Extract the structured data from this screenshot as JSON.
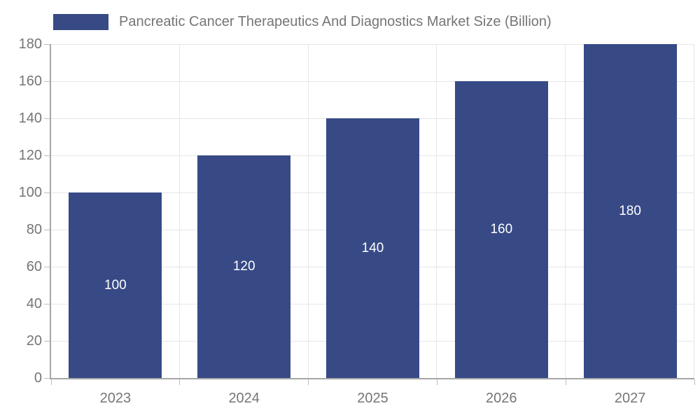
{
  "chart_data": {
    "type": "bar",
    "title": "Pancreatic Cancer Therapeutics And Diagnostics Market Size (Billion)",
    "legend_entries": [
      "Pancreatic Cancer Therapeutics And Diagnostics Market Size (Billion)"
    ],
    "legend_position": "top-left",
    "categories": [
      "2023",
      "2024",
      "2025",
      "2026",
      "2027"
    ],
    "values": [
      100,
      120,
      140,
      160,
      180
    ],
    "bar_value_labels": [
      "100",
      "120",
      "140",
      "160",
      "180"
    ],
    "y_ticks": [
      0,
      20,
      40,
      60,
      80,
      100,
      120,
      140,
      160,
      180
    ],
    "ylim": [
      0,
      180
    ],
    "xlabel": "",
    "ylabel": "",
    "grid": true,
    "colors": {
      "bar": "#374a86",
      "value_label": "#ffffff",
      "grid": "#e6e6e6",
      "axis": "#a6a6a6",
      "tick": "#bdbdbd",
      "tick_label": "#757575",
      "background": "#ffffff"
    }
  }
}
